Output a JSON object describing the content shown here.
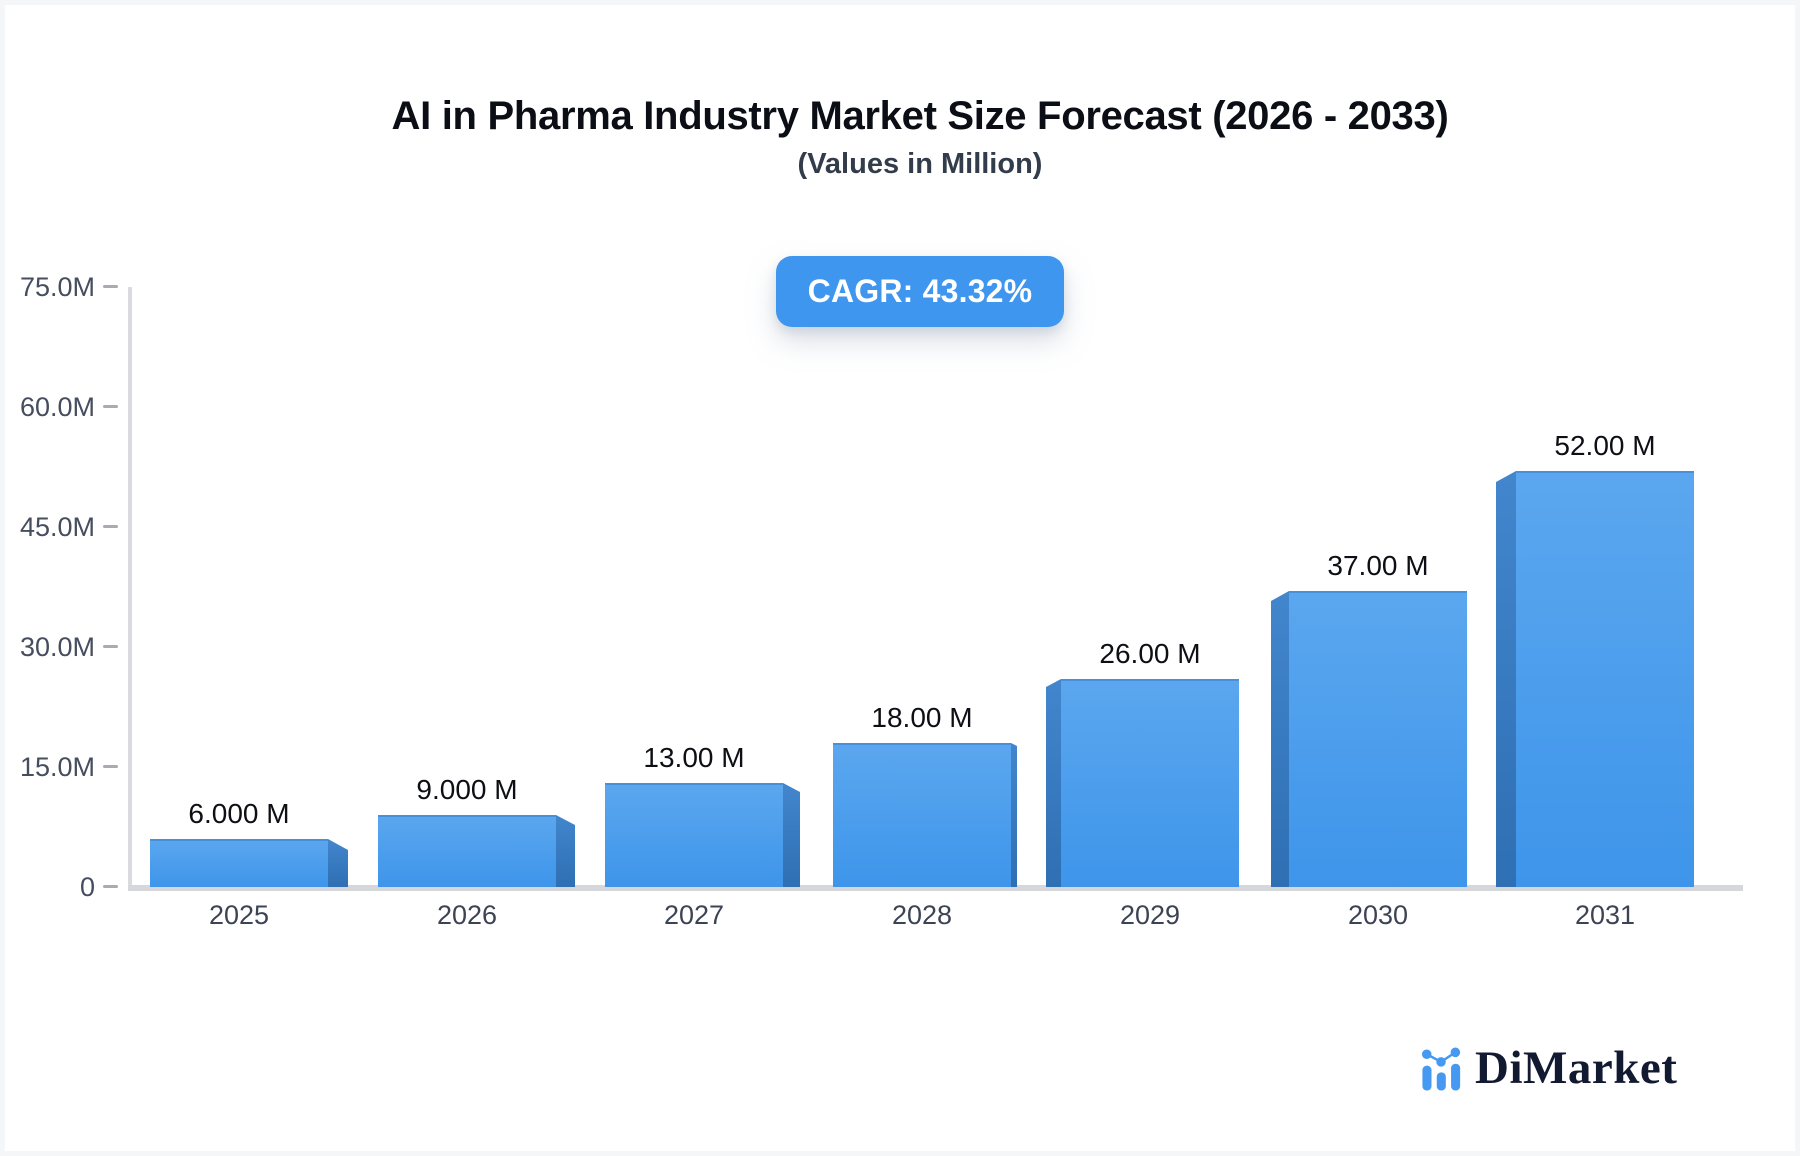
{
  "header": {
    "title": "AI in Pharma Industry Market Size Forecast (2026 - 2033)",
    "subtitle": "(Values in Million)"
  },
  "chart_data": {
    "type": "bar",
    "title": "AI in Pharma Industry Market Size Forecast (2026 - 2033)",
    "subtitle": "(Values in Million)",
    "annotation": "CAGR: 43.32%",
    "unit": "Million",
    "categories": [
      "2025",
      "2026",
      "2027",
      "2028",
      "2029",
      "2030",
      "2031"
    ],
    "values": [
      6,
      9,
      13,
      18,
      26,
      37,
      52
    ],
    "value_labels": [
      "6.000 M",
      "9.000 M",
      "13.00 M",
      "18.00 M",
      "26.00 M",
      "37.00 M",
      "52.00 M"
    ],
    "ylim": [
      0,
      75
    ],
    "yticks": [
      {
        "value": 0,
        "label": "0"
      },
      {
        "value": 15,
        "label": "15.0M"
      },
      {
        "value": 30,
        "label": "30.0M"
      },
      {
        "value": 45,
        "label": "45.0M"
      },
      {
        "value": 60,
        "label": "60.0M"
      },
      {
        "value": 75,
        "label": "75.0M"
      }
    ],
    "grid": false,
    "legend": false,
    "bar_style": "3d-extruded",
    "colors": {
      "bar_top": "#5ba7ef",
      "bar_bottom": "#3e95ea",
      "bar_side_top": "#4286cd",
      "bar_side_bottom": "#2f6fb3",
      "axis_line": "#d9dbe0",
      "tick_dash": "#a7abb4",
      "ylabel_text": "#454d5e",
      "xlabel_text": "#3c4454",
      "value_label_text": "#0d0f14",
      "badge_bg": "#3e96ee",
      "badge_text": "#ffffff"
    }
  },
  "footer": {
    "brand": "DiMarket",
    "brand_icon": "bar-chart-sparkline-icon",
    "brand_text_color": "#121a32",
    "brand_icon_color": "#4599f0"
  }
}
